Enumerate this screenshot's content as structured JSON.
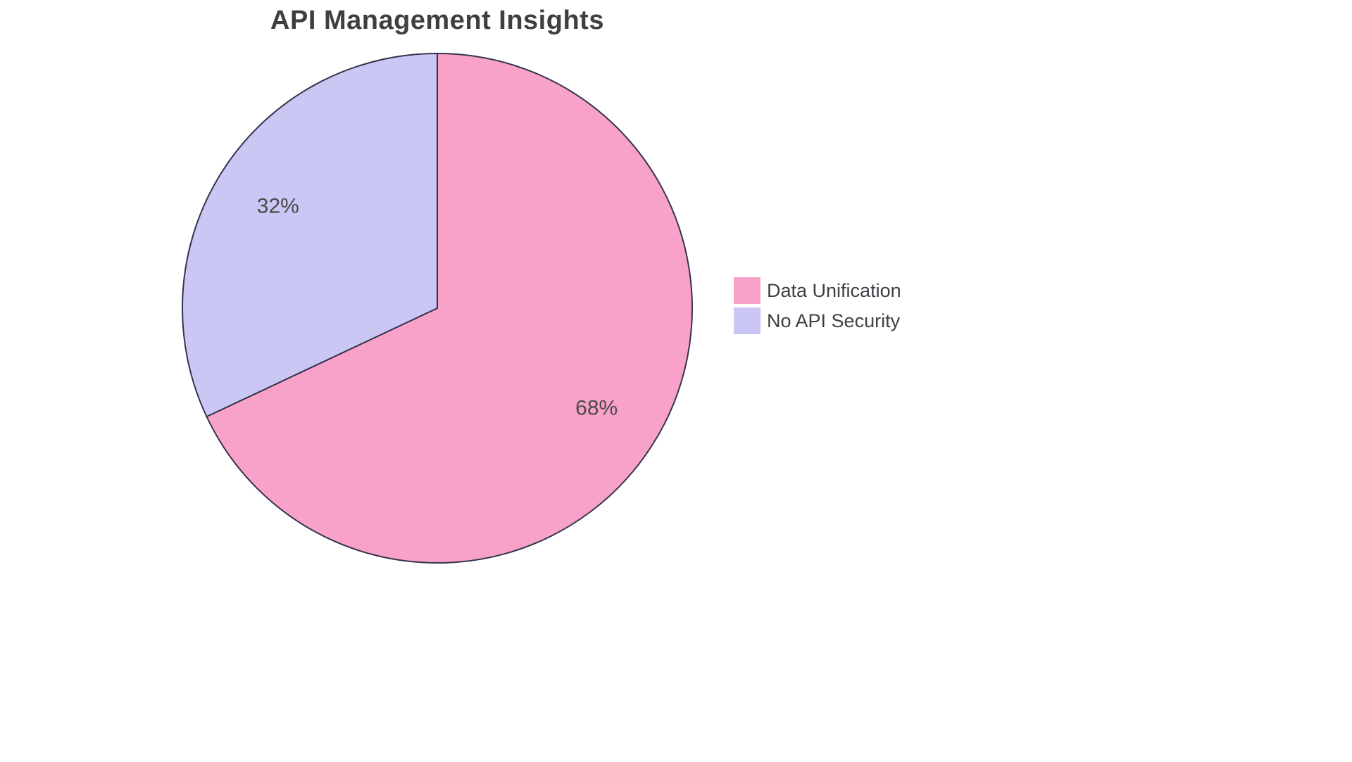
{
  "chart_data": {
    "type": "pie",
    "title": "API Management Insights",
    "labels": [
      "Data Unification",
      "No API Security"
    ],
    "values": [
      68,
      32
    ],
    "value_labels": [
      "68%",
      "32%"
    ],
    "colors": [
      "#F9A2C9",
      "#CBC7F4"
    ],
    "slice_border_color": "#33334D",
    "slice_border_width": 2,
    "label_color": "#4A4A4A",
    "label_font_size": 30,
    "title_color": "#3F3F3F",
    "legend_position": "right",
    "start_angle_deg": -90,
    "direction": "clockwise",
    "background_color": "#FFFFFF"
  }
}
